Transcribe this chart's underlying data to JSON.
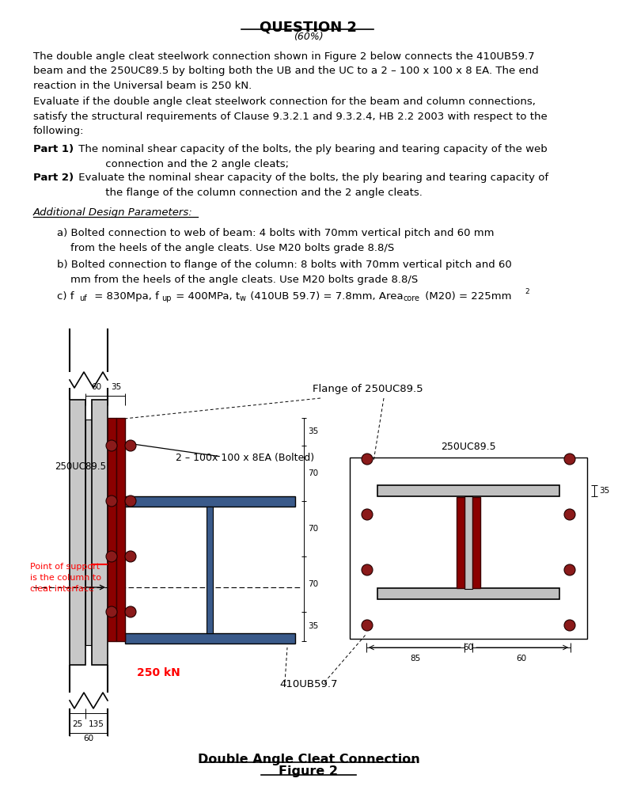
{
  "title": "QUESTION 2",
  "subtitle": "(60%)",
  "para1": "The double angle cleat steelwork connection shown in Figure 2 below connects the 410UB59.7\nbeam and the 250UC89.5 by bolting both the UB and the UC to a 2 – 100 x 100 x 8 EA. The end\nreaction in the Universal beam is 250 kN.",
  "para2": "Evaluate if the double angle cleat steelwork connection for the beam and column connections,\nsatisfy the structural requirements of Clause 9.3.2.1 and 9.3.2.4, HB 2.2 2003 with respect to the\nfollowing:",
  "part1_bold": "Part 1)",
  "part1_text": " The nominal shear capacity of the bolts, the ply bearing and tearing capacity of the web\n         connection and the 2 angle cleats;",
  "part2_bold": "Part 2)",
  "part2_text": " Evaluate the nominal shear capacity of the bolts, the ply bearing and tearing capacity of\n         the flange of the column connection and the 2 angle cleats.",
  "adp_label": "Additional Design Parameters:",
  "item_a": "a) Bolted connection to web of beam: 4 bolts with 70mm vertical pitch and 60 mm\n    from the heels of the angle cleats. Use M20 bolts grade 8.8/S",
  "item_b": "b) Bolted connection to flange of the column: 8 bolts with 70mm vertical pitch and 60\n    mm from the heels of the angle cleats. Use M20 bolts grade 8.8/S",
  "fig_caption_bold": "Double Angle Cleat Connection",
  "fig_caption": "Figure 2",
  "bg_color": "#ffffff",
  "text_color": "#000000",
  "steel_blue": "#3a5a8a",
  "cleat_red": "#8b0000",
  "bolt_red": "#8b1a1a",
  "fig_label_flange": "Flange of 250UC89.5",
  "fig_label_col1": "250UC89.5",
  "fig_label_col2": "250UC89.5",
  "fig_label_cleat": "2 – 100x 100 x 8EA (Bolted)",
  "fig_label_beam": "410UB59.7",
  "fig_label_load": "250 kN",
  "fig_label_point": "Point of support\nis the column to\ncleat interface"
}
